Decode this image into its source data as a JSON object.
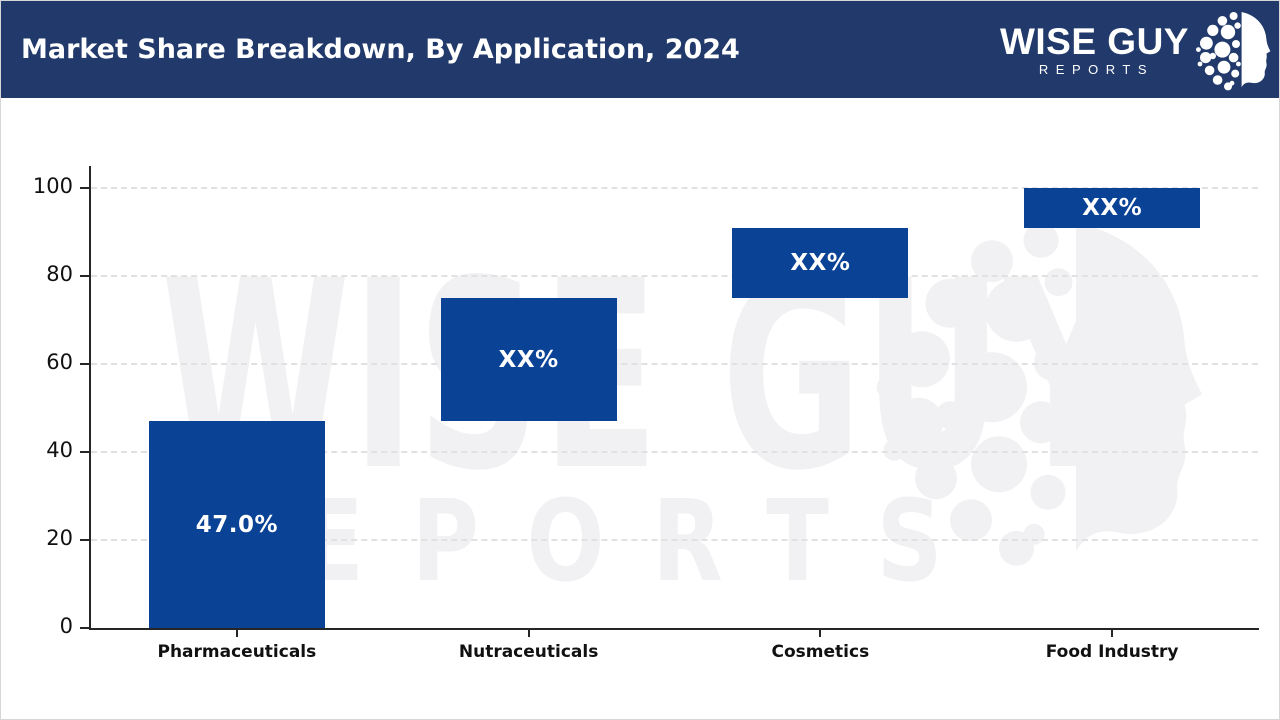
{
  "header": {
    "title": "Market Share Breakdown, By Application, 2024",
    "logo_line1": "WISE GUY",
    "logo_line2": "REPORTS"
  },
  "watermark": {
    "line1": "WISE GUY",
    "line2": "REPORTS"
  },
  "chart_data": {
    "type": "bar",
    "variant": "waterfall",
    "title": "Market Share Breakdown, By Application, 2024",
    "categories": [
      "Pharmaceuticals",
      "Nutraceuticals",
      "Cosmetics",
      "Food Industry"
    ],
    "series": [
      {
        "name": "Market Share (%)",
        "segments": [
          {
            "category": "Pharmaceuticals",
            "start": 0,
            "end": 47,
            "label": "47.0%"
          },
          {
            "category": "Nutraceuticals",
            "start": 47,
            "end": 75,
            "label": "XX%"
          },
          {
            "category": "Cosmetics",
            "start": 75,
            "end": 91,
            "label": "XX%"
          },
          {
            "category": "Food Industry",
            "start": 91,
            "end": 100,
            "label": "XX%"
          }
        ]
      }
    ],
    "yticks": [
      0,
      20,
      40,
      60,
      80,
      100
    ],
    "ylim": [
      0,
      105
    ],
    "xlabel": "",
    "ylabel": "",
    "grid": "horizontal-dashed",
    "legend": "none",
    "bar_color": "#0a4296",
    "bar_label_color": "#ffffff"
  },
  "colors": {
    "header_bg": "#213a6b",
    "axis": "#262626",
    "grid": "#e1e1e1",
    "text": "#111111",
    "watermark": "#f1f1f3",
    "page_border": "#d7d7d7"
  }
}
